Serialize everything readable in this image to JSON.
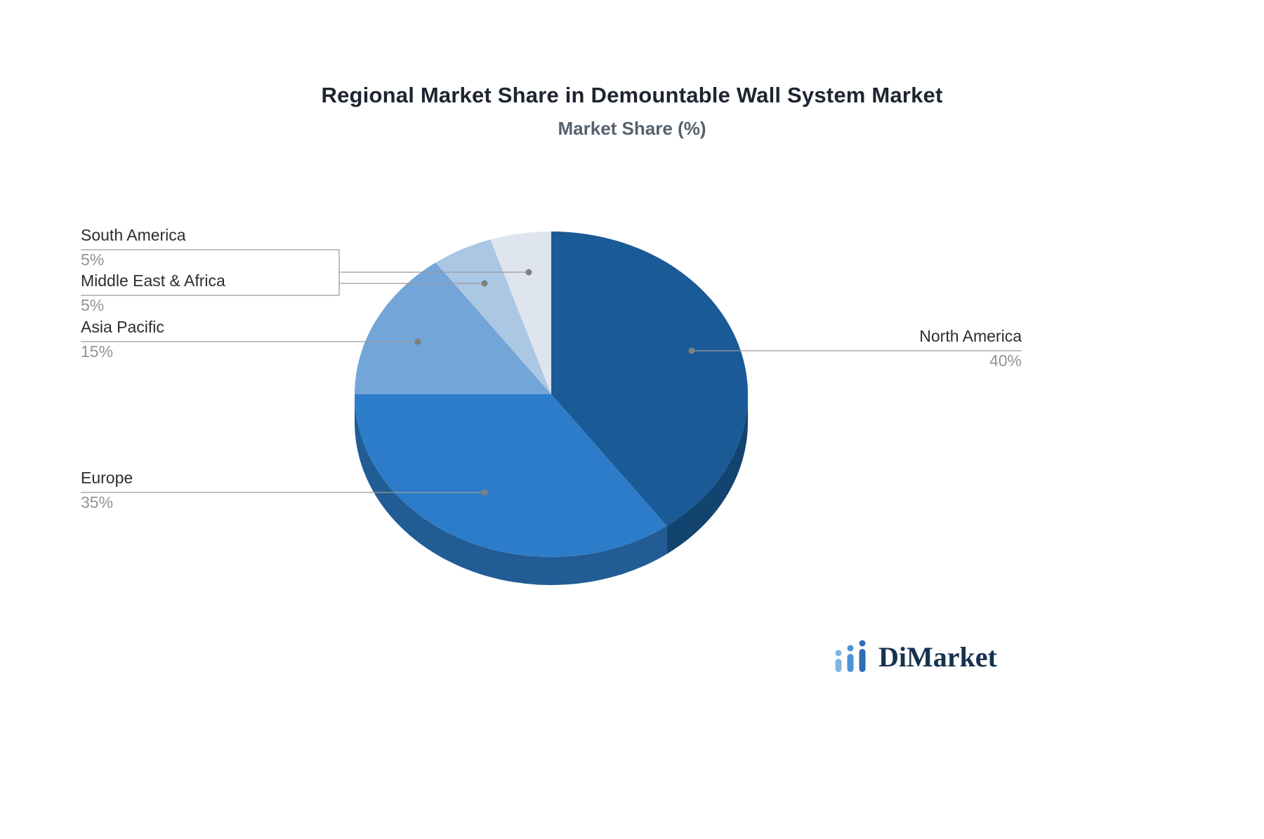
{
  "header": {
    "title": "Regional Market Share in Demountable Wall System Market",
    "subtitle": "Market Share (%)"
  },
  "chart_data": {
    "type": "pie",
    "style": "3d",
    "title": "Regional Market Share in Demountable Wall System Market",
    "subtitle": "Market Share (%)",
    "unit": "%",
    "direction": "clockwise",
    "start_angle_deg": 0,
    "legend_position": "callout-labels",
    "segments": [
      {
        "label": "North America",
        "value": 40,
        "display": "40%",
        "color": "#1a5a96"
      },
      {
        "label": "Europe",
        "value": 35,
        "display": "35%",
        "color": "#2d7cc9"
      },
      {
        "label": "Asia Pacific",
        "value": 15,
        "display": "15%",
        "color": "#74a5d8"
      },
      {
        "label": "Middle East & Africa",
        "value": 5,
        "display": "5%",
        "color": "#aac7e4"
      },
      {
        "label": "South America",
        "value": 5,
        "display": "5%",
        "color": "#dfe5ee"
      }
    ],
    "colors": {
      "leader_line": "#9a9a9a",
      "leader_dot": "#7f7f7f",
      "background": "#ffffff"
    }
  },
  "brand": {
    "name": "DiMarket",
    "icon": "bar-chart-logo-icon"
  }
}
